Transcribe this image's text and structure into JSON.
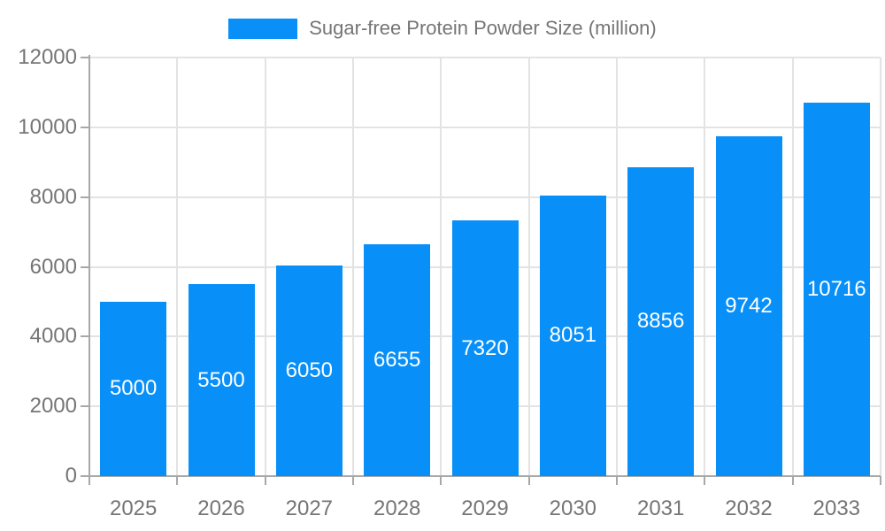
{
  "legend": {
    "label": "Sugar-free Protein Powder Size (million)"
  },
  "chart_data": {
    "type": "bar",
    "title": "Sugar-free Protein Powder Size (million)",
    "categories": [
      "2025",
      "2026",
      "2027",
      "2028",
      "2029",
      "2030",
      "2031",
      "2032",
      "2033"
    ],
    "series": [
      {
        "name": "Sugar-free Protein Powder Size (million)",
        "values": [
          5000,
          5500,
          6050,
          6655,
          7320,
          8051,
          8856,
          9742,
          10716
        ]
      }
    ],
    "values": [
      5000,
      5500,
      6050,
      6655,
      7320,
      8051,
      8856,
      9742,
      10716
    ],
    "data_labels": [
      "5000",
      "5500",
      "6050",
      "6655",
      "7320",
      "8051",
      "8856",
      "9742",
      "10716"
    ],
    "xlabel": "",
    "ylabel": "",
    "ylim": [
      0,
      12000
    ],
    "yticks": [
      0,
      2000,
      4000,
      6000,
      8000,
      10000,
      12000
    ],
    "grid": true,
    "legend_position": "top",
    "colors": {
      "bar": "#0890f8",
      "axis": "#a8a8a8",
      "grid": "#e3e3e3",
      "tick_label": "#757575",
      "value_label": "#ffffff",
      "background": "#ffffff"
    }
  }
}
